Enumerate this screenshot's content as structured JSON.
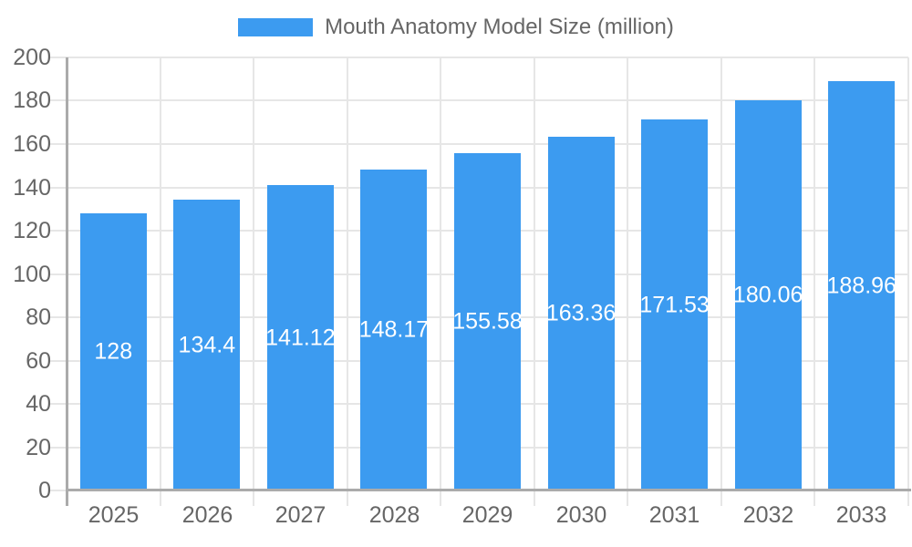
{
  "chart_data": {
    "type": "bar",
    "title": "Mouth Anatomy Model Size (million)",
    "legend": {
      "position": "top",
      "entries": [
        "Mouth Anatomy Model Size (million)"
      ]
    },
    "categories": [
      "2025",
      "2026",
      "2027",
      "2028",
      "2029",
      "2030",
      "2031",
      "2032",
      "2033"
    ],
    "values": [
      128,
      134.4,
      141.12,
      148.17,
      155.58,
      163.36,
      171.53,
      180.06,
      188.96
    ],
    "value_labels": [
      "128",
      "134.4",
      "141.12",
      "148.17",
      "155.58",
      "163.36",
      "171.53",
      "180.06",
      "188.96"
    ],
    "xlabel": "",
    "ylabel": "",
    "ylim": [
      0,
      200
    ],
    "yticks": [
      0,
      20,
      40,
      60,
      80,
      100,
      120,
      140,
      160,
      180,
      200
    ],
    "grid": true,
    "colors": {
      "bar": "#3C9BF0",
      "grid": "#E6E6E6",
      "axis": "#ABABAB",
      "tick_text": "#666666",
      "legend_text": "#666666",
      "bar_label": "#FFFFFF",
      "background": "#FFFFFF"
    }
  }
}
